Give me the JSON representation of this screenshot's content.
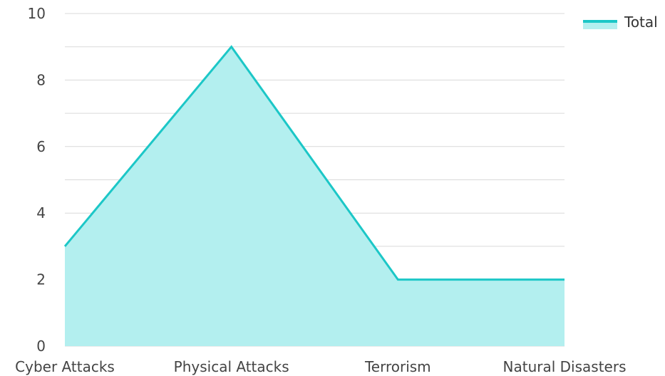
{
  "chart_data": {
    "type": "area",
    "categories": [
      "Cyber Attacks",
      "Physical Attacks",
      "Terrorism",
      "Natural Disasters"
    ],
    "series": [
      {
        "name": "Total",
        "values": [
          3,
          9,
          2,
          2
        ],
        "line_color": "#1cc7c7",
        "fill_color": "#b3efef"
      }
    ],
    "y_ticks": [
      "0",
      "2",
      "4",
      "6",
      "8",
      "10"
    ],
    "ylim": [
      0,
      10
    ],
    "y_minor_step": 1,
    "grid": true,
    "legend_position": "top-right",
    "grid_color": "#d9d9d9"
  }
}
